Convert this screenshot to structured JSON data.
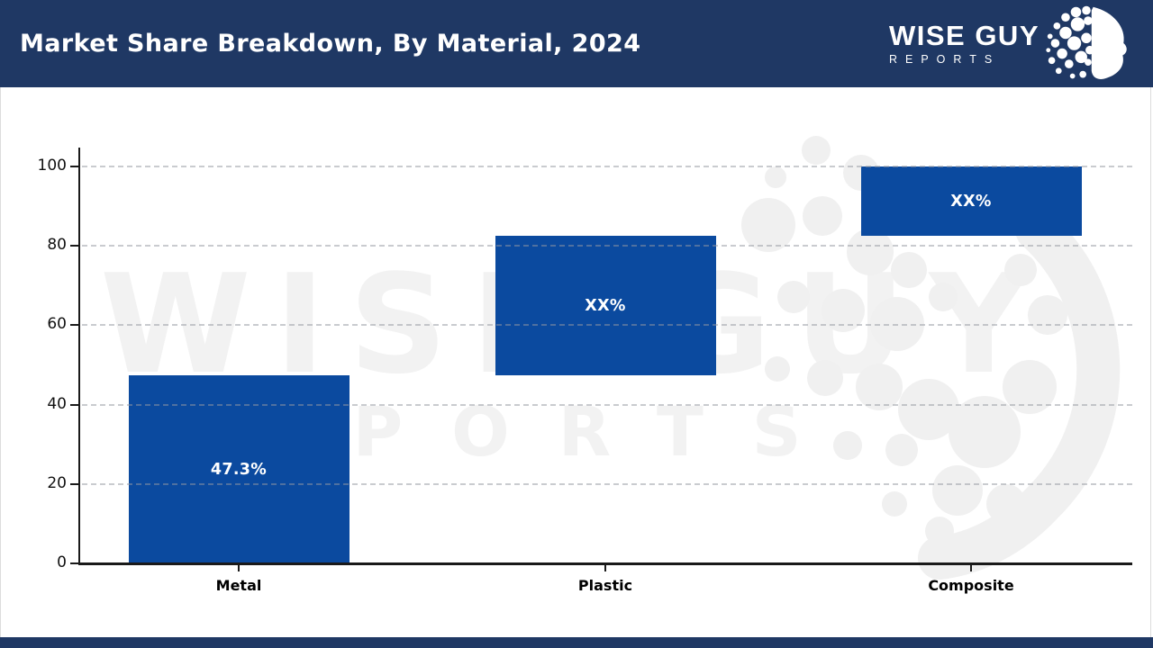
{
  "header": {
    "title": "Market Share Breakdown, By Material, 2024",
    "logo": {
      "line1": "WISE GUY",
      "line2": "REPORTS"
    }
  },
  "watermark": {
    "line1": "WISE GUY",
    "line2": "REPORTS"
  },
  "chart_data": {
    "type": "bar",
    "subtype": "floating-waterfall",
    "title": "Market Share Breakdown, By Material, 2024",
    "categories": [
      "Metal",
      "Plastic",
      "Composite"
    ],
    "segments": [
      {
        "category": "Metal",
        "start": 0,
        "end": 47.3,
        "label": "47.3%"
      },
      {
        "category": "Plastic",
        "start": 47.3,
        "end": 82.5,
        "label": "XX%"
      },
      {
        "category": "Composite",
        "start": 82.5,
        "end": 100,
        "label": "XX%"
      }
    ],
    "ylim": [
      0,
      100
    ],
    "yticks": [
      0,
      20,
      40,
      60,
      80,
      100
    ],
    "xlabel": "",
    "ylabel": "",
    "grid": "horizontal-dashed",
    "legend": "none",
    "bar_color": "#0B4A9F",
    "bar_label_color": "#ffffff"
  },
  "colors": {
    "header_bg": "#1F3864",
    "footer_bg": "#1F3864",
    "axis": "#1a1a1a",
    "gridline": "#d9d9d9",
    "watermark": "#f2f2f2"
  }
}
